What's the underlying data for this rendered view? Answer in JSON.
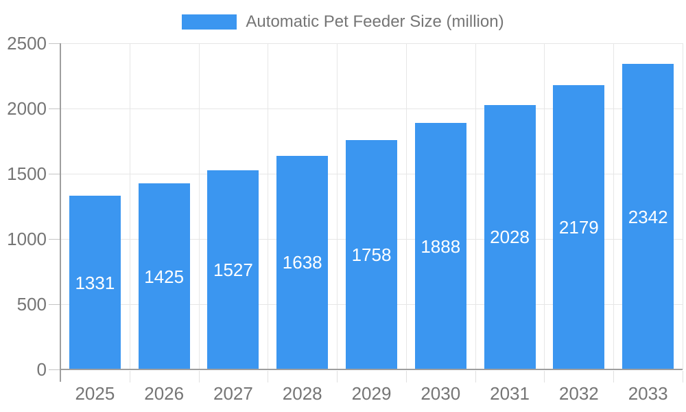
{
  "legend": {
    "label": "Automatic Pet Feeder Size (million)"
  },
  "colors": {
    "bar": "#3B96F0",
    "axis_text": "#757575",
    "legend_text": "#757575",
    "gridline": "#E6E6E6",
    "axis_line": "#9E9E9E",
    "tick_y": "#C4C4C4",
    "tick_x": "#E0E0E0",
    "bar_label": "#FFFFFF",
    "background": "#FFFFFF"
  },
  "chart_data": {
    "type": "bar",
    "title": "Automatic Pet Feeder Size (million)",
    "categories": [
      "2025",
      "2026",
      "2027",
      "2028",
      "2029",
      "2030",
      "2031",
      "2032",
      "2033"
    ],
    "values": [
      1331,
      1425,
      1527,
      1638,
      1758,
      1888,
      2028,
      2179,
      2342
    ],
    "series": [
      {
        "name": "Automatic Pet Feeder Size (million)",
        "values": [
          1331,
          1425,
          1527,
          1638,
          1758,
          1888,
          2028,
          2179,
          2342
        ]
      }
    ],
    "xlabel": "",
    "ylabel": "",
    "ylim": [
      0,
      2500
    ],
    "yticks": [
      0,
      500,
      1000,
      1500,
      2000,
      2500
    ],
    "grid": true,
    "legend_position": "top-center",
    "value_labels": "inside-center-white"
  }
}
